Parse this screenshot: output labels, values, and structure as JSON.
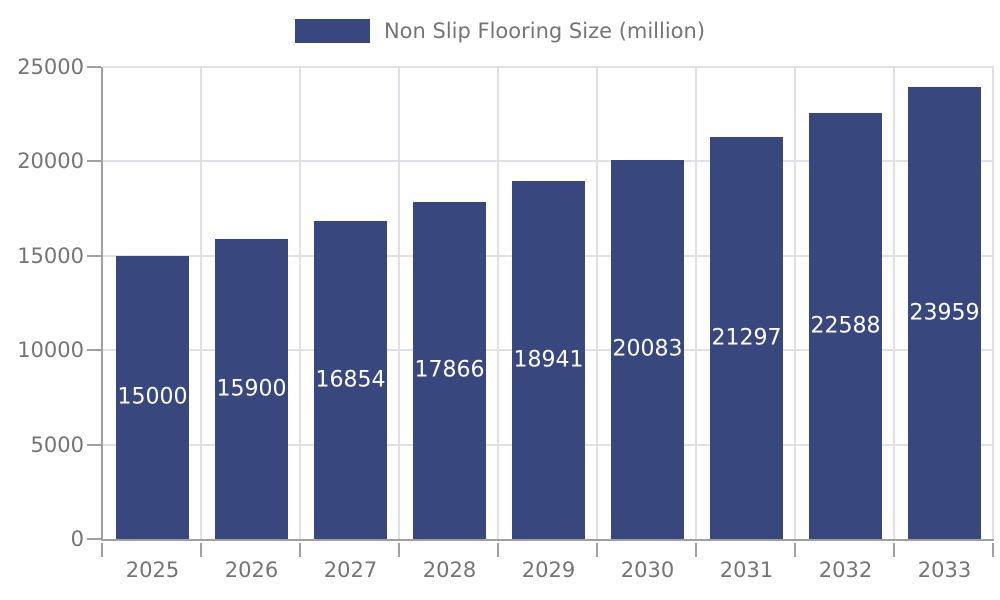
{
  "chart_data": {
    "type": "bar",
    "title": "Non Slip Flooring Size (million)",
    "categories": [
      "2025",
      "2026",
      "2027",
      "2028",
      "2029",
      "2030",
      "2031",
      "2032",
      "2033"
    ],
    "values": [
      15000,
      15900,
      16854,
      17866,
      18941,
      20083,
      21297,
      22588,
      23959
    ],
    "xlabel": "",
    "ylabel": "",
    "ylim": [
      0,
      25000
    ],
    "yticks": [
      0,
      5000,
      10000,
      15000,
      20000,
      25000
    ],
    "grid": true,
    "bar_labels_inside": true,
    "legend": {
      "label": "Non Slip Flooring Size (million)",
      "position": "top-center"
    },
    "colors": {
      "bar": "#38487F",
      "bar_label": "#FFFFFF",
      "tick_label": "#757575",
      "axis": "#A0A0A0",
      "grid": "#E0E0E6",
      "background": "#FFFFFF"
    }
  }
}
